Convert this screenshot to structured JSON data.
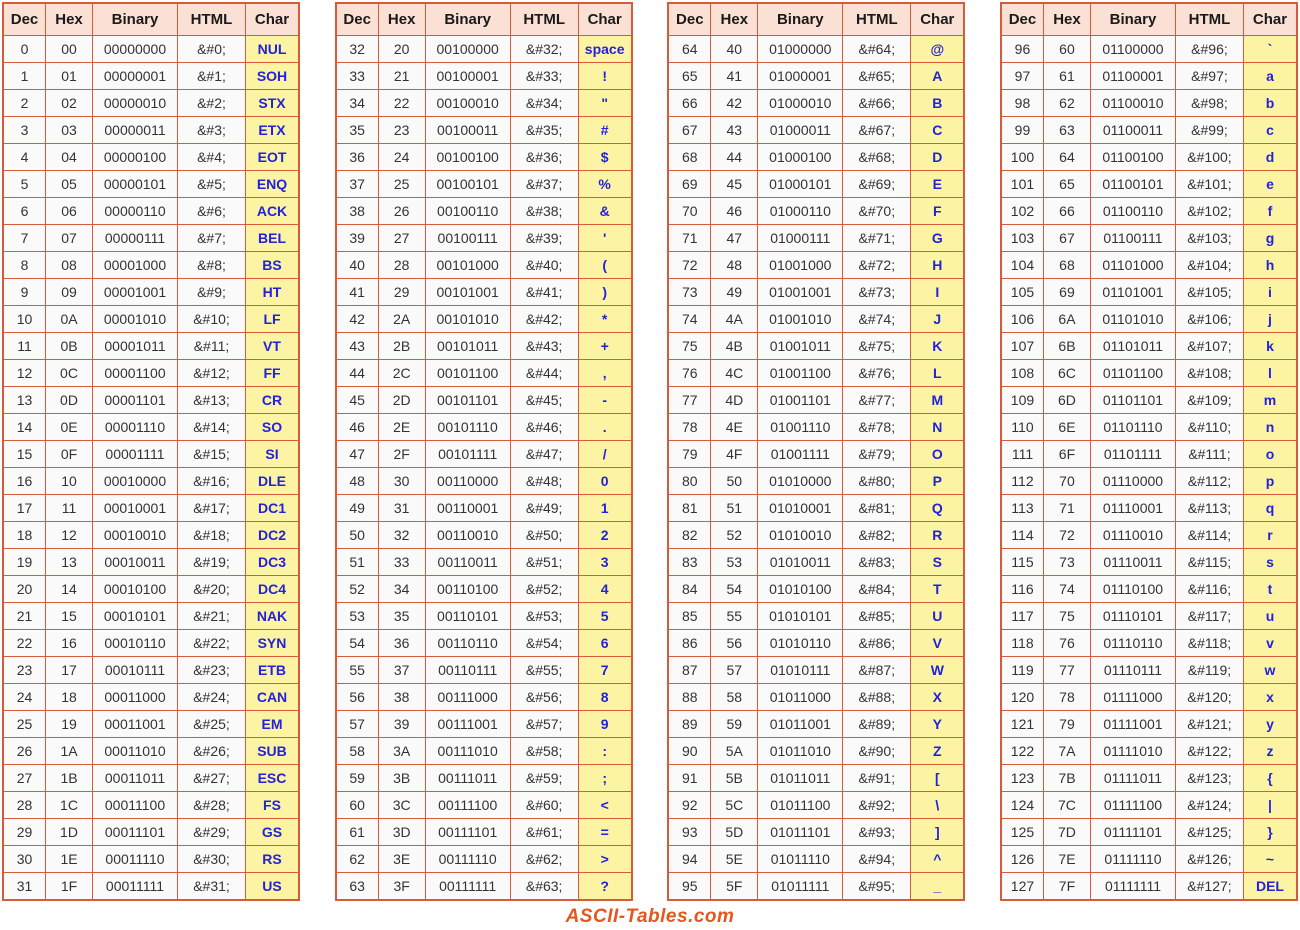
{
  "columns": [
    "Dec",
    "Hex",
    "Binary",
    "HTML",
    "Char"
  ],
  "footer": {
    "link_label": "ASCII-Tables.com"
  },
  "colors": {
    "grid_border": "#D65C39",
    "header_bg": "#FBE1D5",
    "cell_bg": "#FAFAFA",
    "char_cell_bg": "#FCF3A3",
    "char_text": "#2222DD",
    "data_text": "#333333",
    "footer_text": "#E4571D"
  },
  "tables": [
    {
      "name": "ascii-control-characters-0-31",
      "rows": [
        [
          "0",
          "00",
          "00000000",
          "&#0;",
          "NUL"
        ],
        [
          "1",
          "01",
          "00000001",
          "&#1;",
          "SOH"
        ],
        [
          "2",
          "02",
          "00000010",
          "&#2;",
          "STX"
        ],
        [
          "3",
          "03",
          "00000011",
          "&#3;",
          "ETX"
        ],
        [
          "4",
          "04",
          "00000100",
          "&#4;",
          "EOT"
        ],
        [
          "5",
          "05",
          "00000101",
          "&#5;",
          "ENQ"
        ],
        [
          "6",
          "06",
          "00000110",
          "&#6;",
          "ACK"
        ],
        [
          "7",
          "07",
          "00000111",
          "&#7;",
          "BEL"
        ],
        [
          "8",
          "08",
          "00001000",
          "&#8;",
          "BS"
        ],
        [
          "9",
          "09",
          "00001001",
          "&#9;",
          "HT"
        ],
        [
          "10",
          "0A",
          "00001010",
          "&#10;",
          "LF"
        ],
        [
          "11",
          "0B",
          "00001011",
          "&#11;",
          "VT"
        ],
        [
          "12",
          "0C",
          "00001100",
          "&#12;",
          "FF"
        ],
        [
          "13",
          "0D",
          "00001101",
          "&#13;",
          "CR"
        ],
        [
          "14",
          "0E",
          "00001110",
          "&#14;",
          "SO"
        ],
        [
          "15",
          "0F",
          "00001111",
          "&#15;",
          "SI"
        ],
        [
          "16",
          "10",
          "00010000",
          "&#16;",
          "DLE"
        ],
        [
          "17",
          "11",
          "00010001",
          "&#17;",
          "DC1"
        ],
        [
          "18",
          "12",
          "00010010",
          "&#18;",
          "DC2"
        ],
        [
          "19",
          "13",
          "00010011",
          "&#19;",
          "DC3"
        ],
        [
          "20",
          "14",
          "00010100",
          "&#20;",
          "DC4"
        ],
        [
          "21",
          "15",
          "00010101",
          "&#21;",
          "NAK"
        ],
        [
          "22",
          "16",
          "00010110",
          "&#22;",
          "SYN"
        ],
        [
          "23",
          "17",
          "00010111",
          "&#23;",
          "ETB"
        ],
        [
          "24",
          "18",
          "00011000",
          "&#24;",
          "CAN"
        ],
        [
          "25",
          "19",
          "00011001",
          "&#25;",
          "EM"
        ],
        [
          "26",
          "1A",
          "00011010",
          "&#26;",
          "SUB"
        ],
        [
          "27",
          "1B",
          "00011011",
          "&#27;",
          "ESC"
        ],
        [
          "28",
          "1C",
          "00011100",
          "&#28;",
          "FS"
        ],
        [
          "29",
          "1D",
          "00011101",
          "&#29;",
          "GS"
        ],
        [
          "30",
          "1E",
          "00011110",
          "&#30;",
          "RS"
        ],
        [
          "31",
          "1F",
          "00011111",
          "&#31;",
          "US"
        ]
      ]
    },
    {
      "name": "ascii-printable-32-63",
      "rows": [
        [
          "32",
          "20",
          "00100000",
          "&#32;",
          "space"
        ],
        [
          "33",
          "21",
          "00100001",
          "&#33;",
          "!"
        ],
        [
          "34",
          "22",
          "00100010",
          "&#34;",
          "\""
        ],
        [
          "35",
          "23",
          "00100011",
          "&#35;",
          "#"
        ],
        [
          "36",
          "24",
          "00100100",
          "&#36;",
          "$"
        ],
        [
          "37",
          "25",
          "00100101",
          "&#37;",
          "%"
        ],
        [
          "38",
          "26",
          "00100110",
          "&#38;",
          "&"
        ],
        [
          "39",
          "27",
          "00100111",
          "&#39;",
          "'"
        ],
        [
          "40",
          "28",
          "00101000",
          "&#40;",
          "("
        ],
        [
          "41",
          "29",
          "00101001",
          "&#41;",
          ")"
        ],
        [
          "42",
          "2A",
          "00101010",
          "&#42;",
          "*"
        ],
        [
          "43",
          "2B",
          "00101011",
          "&#43;",
          "+"
        ],
        [
          "44",
          "2C",
          "00101100",
          "&#44;",
          ","
        ],
        [
          "45",
          "2D",
          "00101101",
          "&#45;",
          "-"
        ],
        [
          "46",
          "2E",
          "00101110",
          "&#46;",
          "."
        ],
        [
          "47",
          "2F",
          "00101111",
          "&#47;",
          "/"
        ],
        [
          "48",
          "30",
          "00110000",
          "&#48;",
          "0"
        ],
        [
          "49",
          "31",
          "00110001",
          "&#49;",
          "1"
        ],
        [
          "50",
          "32",
          "00110010",
          "&#50;",
          "2"
        ],
        [
          "51",
          "33",
          "00110011",
          "&#51;",
          "3"
        ],
        [
          "52",
          "34",
          "00110100",
          "&#52;",
          "4"
        ],
        [
          "53",
          "35",
          "00110101",
          "&#53;",
          "5"
        ],
        [
          "54",
          "36",
          "00110110",
          "&#54;",
          "6"
        ],
        [
          "55",
          "37",
          "00110111",
          "&#55;",
          "7"
        ],
        [
          "56",
          "38",
          "00111000",
          "&#56;",
          "8"
        ],
        [
          "57",
          "39",
          "00111001",
          "&#57;",
          "9"
        ],
        [
          "58",
          "3A",
          "00111010",
          "&#58;",
          ":"
        ],
        [
          "59",
          "3B",
          "00111011",
          "&#59;",
          ";"
        ],
        [
          "60",
          "3C",
          "00111100",
          "&#60;",
          "<"
        ],
        [
          "61",
          "3D",
          "00111101",
          "&#61;",
          "="
        ],
        [
          "62",
          "3E",
          "00111110",
          "&#62;",
          ">"
        ],
        [
          "63",
          "3F",
          "00111111",
          "&#63;",
          "?"
        ]
      ]
    },
    {
      "name": "ascii-uppercase-64-95",
      "rows": [
        [
          "64",
          "40",
          "01000000",
          "&#64;",
          "@"
        ],
        [
          "65",
          "41",
          "01000001",
          "&#65;",
          "A"
        ],
        [
          "66",
          "42",
          "01000010",
          "&#66;",
          "B"
        ],
        [
          "67",
          "43",
          "01000011",
          "&#67;",
          "C"
        ],
        [
          "68",
          "44",
          "01000100",
          "&#68;",
          "D"
        ],
        [
          "69",
          "45",
          "01000101",
          "&#69;",
          "E"
        ],
        [
          "70",
          "46",
          "01000110",
          "&#70;",
          "F"
        ],
        [
          "71",
          "47",
          "01000111",
          "&#71;",
          "G"
        ],
        [
          "72",
          "48",
          "01001000",
          "&#72;",
          "H"
        ],
        [
          "73",
          "49",
          "01001001",
          "&#73;",
          "I"
        ],
        [
          "74",
          "4A",
          "01001010",
          "&#74;",
          "J"
        ],
        [
          "75",
          "4B",
          "01001011",
          "&#75;",
          "K"
        ],
        [
          "76",
          "4C",
          "01001100",
          "&#76;",
          "L"
        ],
        [
          "77",
          "4D",
          "01001101",
          "&#77;",
          "M"
        ],
        [
          "78",
          "4E",
          "01001110",
          "&#78;",
          "N"
        ],
        [
          "79",
          "4F",
          "01001111",
          "&#79;",
          "O"
        ],
        [
          "80",
          "50",
          "01010000",
          "&#80;",
          "P"
        ],
        [
          "81",
          "51",
          "01010001",
          "&#81;",
          "Q"
        ],
        [
          "82",
          "52",
          "01010010",
          "&#82;",
          "R"
        ],
        [
          "83",
          "53",
          "01010011",
          "&#83;",
          "S"
        ],
        [
          "84",
          "54",
          "01010100",
          "&#84;",
          "T"
        ],
        [
          "85",
          "55",
          "01010101",
          "&#85;",
          "U"
        ],
        [
          "86",
          "56",
          "01010110",
          "&#86;",
          "V"
        ],
        [
          "87",
          "57",
          "01010111",
          "&#87;",
          "W"
        ],
        [
          "88",
          "58",
          "01011000",
          "&#88;",
          "X"
        ],
        [
          "89",
          "59",
          "01011001",
          "&#89;",
          "Y"
        ],
        [
          "90",
          "5A",
          "01011010",
          "&#90;",
          "Z"
        ],
        [
          "91",
          "5B",
          "01011011",
          "&#91;",
          "["
        ],
        [
          "92",
          "5C",
          "01011100",
          "&#92;",
          "\\"
        ],
        [
          "93",
          "5D",
          "01011101",
          "&#93;",
          "]"
        ],
        [
          "94",
          "5E",
          "01011110",
          "&#94;",
          "^"
        ],
        [
          "95",
          "5F",
          "01011111",
          "&#95;",
          "_"
        ]
      ]
    },
    {
      "name": "ascii-lowercase-96-127",
      "rows": [
        [
          "96",
          "60",
          "01100000",
          "&#96;",
          "`"
        ],
        [
          "97",
          "61",
          "01100001",
          "&#97;",
          "a"
        ],
        [
          "98",
          "62",
          "01100010",
          "&#98;",
          "b"
        ],
        [
          "99",
          "63",
          "01100011",
          "&#99;",
          "c"
        ],
        [
          "100",
          "64",
          "01100100",
          "&#100;",
          "d"
        ],
        [
          "101",
          "65",
          "01100101",
          "&#101;",
          "e"
        ],
        [
          "102",
          "66",
          "01100110",
          "&#102;",
          "f"
        ],
        [
          "103",
          "67",
          "01100111",
          "&#103;",
          "g"
        ],
        [
          "104",
          "68",
          "01101000",
          "&#104;",
          "h"
        ],
        [
          "105",
          "69",
          "01101001",
          "&#105;",
          "i"
        ],
        [
          "106",
          "6A",
          "01101010",
          "&#106;",
          "j"
        ],
        [
          "107",
          "6B",
          "01101011",
          "&#107;",
          "k"
        ],
        [
          "108",
          "6C",
          "01101100",
          "&#108;",
          "l"
        ],
        [
          "109",
          "6D",
          "01101101",
          "&#109;",
          "m"
        ],
        [
          "110",
          "6E",
          "01101110",
          "&#110;",
          "n"
        ],
        [
          "111",
          "6F",
          "01101111",
          "&#111;",
          "o"
        ],
        [
          "112",
          "70",
          "01110000",
          "&#112;",
          "p"
        ],
        [
          "113",
          "71",
          "01110001",
          "&#113;",
          "q"
        ],
        [
          "114",
          "72",
          "01110010",
          "&#114;",
          "r"
        ],
        [
          "115",
          "73",
          "01110011",
          "&#115;",
          "s"
        ],
        [
          "116",
          "74",
          "01110100",
          "&#116;",
          "t"
        ],
        [
          "117",
          "75",
          "01110101",
          "&#117;",
          "u"
        ],
        [
          "118",
          "76",
          "01110110",
          "&#118;",
          "v"
        ],
        [
          "119",
          "77",
          "01110111",
          "&#119;",
          "w"
        ],
        [
          "120",
          "78",
          "01111000",
          "&#120;",
          "x"
        ],
        [
          "121",
          "79",
          "01111001",
          "&#121;",
          "y"
        ],
        [
          "122",
          "7A",
          "01111010",
          "&#122;",
          "z"
        ],
        [
          "123",
          "7B",
          "01111011",
          "&#123;",
          "{"
        ],
        [
          "124",
          "7C",
          "01111100",
          "&#124;",
          "|"
        ],
        [
          "125",
          "7D",
          "01111101",
          "&#125;",
          "}"
        ],
        [
          "126",
          "7E",
          "01111110",
          "&#126;",
          "~"
        ],
        [
          "127",
          "7F",
          "01111111",
          "&#127;",
          "DEL"
        ]
      ]
    }
  ]
}
